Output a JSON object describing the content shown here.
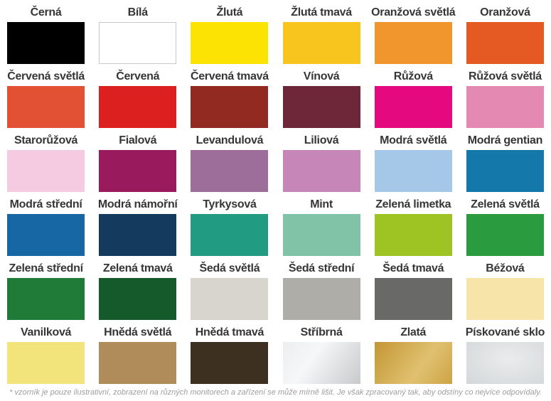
{
  "page": {
    "background": "#ffffff"
  },
  "palette": {
    "label_color": "#363636",
    "swatches": [
      {
        "label": "Černá",
        "color": "#000000"
      },
      {
        "label": "Bílá",
        "color": "#ffffff",
        "border": "#c9c9c9"
      },
      {
        "label": "Žlutá",
        "color": "#fce303"
      },
      {
        "label": "Žlutá tmavá",
        "color": "#f8c41e"
      },
      {
        "label": "Oranžová světlá",
        "color": "#f0962c"
      },
      {
        "label": "Oranžová",
        "color": "#e45a22"
      },
      {
        "label": "Červená světlá",
        "color": "#e25133"
      },
      {
        "label": "Červená",
        "color": "#dc2020"
      },
      {
        "label": "Červená tmavá",
        "color": "#922a22"
      },
      {
        "label": "Vínová",
        "color": "#6e2639"
      },
      {
        "label": "Růžová",
        "color": "#e5097f"
      },
      {
        "label": "Růžová světlá",
        "color": "#e489b2"
      },
      {
        "label": "Starorůžová",
        "color": "#f4cbe1"
      },
      {
        "label": "Fialová",
        "color": "#991b5d"
      },
      {
        "label": "Levandulová",
        "color": "#9c6e99"
      },
      {
        "label": "Liliová",
        "color": "#c687b8"
      },
      {
        "label": "Modrá světlá",
        "color": "#a5c8e9"
      },
      {
        "label": "Modrá gentian",
        "color": "#1478aa"
      },
      {
        "label": "Modrá střední",
        "color": "#1667a3"
      },
      {
        "label": "Modrá námořní",
        "color": "#143a5e"
      },
      {
        "label": "Tyrkysová",
        "color": "#219b82"
      },
      {
        "label": "Mint",
        "color": "#80c3a7"
      },
      {
        "label": "Zelená limetka",
        "color": "#9dc422"
      },
      {
        "label": "Zelená světlá",
        "color": "#2a9c3f"
      },
      {
        "label": "Zelená střední",
        "color": "#1f7b37"
      },
      {
        "label": "Zelená tmavá",
        "color": "#155a2a"
      },
      {
        "label": "Šedá světlá",
        "color": "#d7d5cd"
      },
      {
        "label": "Šedá střední",
        "color": "#aeada8"
      },
      {
        "label": "Šedá tmavá",
        "color": "#696968"
      },
      {
        "label": "Béžová",
        "color": "#f7e4a9"
      },
      {
        "label": "Vanilková",
        "color": "#f2e37a"
      },
      {
        "label": "Hnědá světlá",
        "color": "#b08c5b"
      },
      {
        "label": "Hnědá tmavá",
        "color": "#3d3020"
      },
      {
        "label": "Stříbrná",
        "gradient": {
          "type": "linear",
          "angle": "125deg",
          "stops": [
            "#eceeef",
            "#f6f7f8 38%",
            "#c7c9cb"
          ]
        }
      },
      {
        "label": "Zlatá",
        "gradient": {
          "type": "linear",
          "angle": "125deg",
          "stops": [
            "#c49634",
            "#e0c170 60%",
            "#cda345"
          ]
        }
      },
      {
        "label": "Pískované sklo",
        "gradient": {
          "type": "radial",
          "stops": [
            "#eaeced",
            "#d4d7d9"
          ]
        }
      }
    ]
  },
  "footer": {
    "note": "* vzorník je pouze ilustrativní, zobrazení na různých monitorech a zařízení se může mírně lišit. Je však zpracovaný tak, aby odstíny co nejvíce odpovídaly."
  }
}
